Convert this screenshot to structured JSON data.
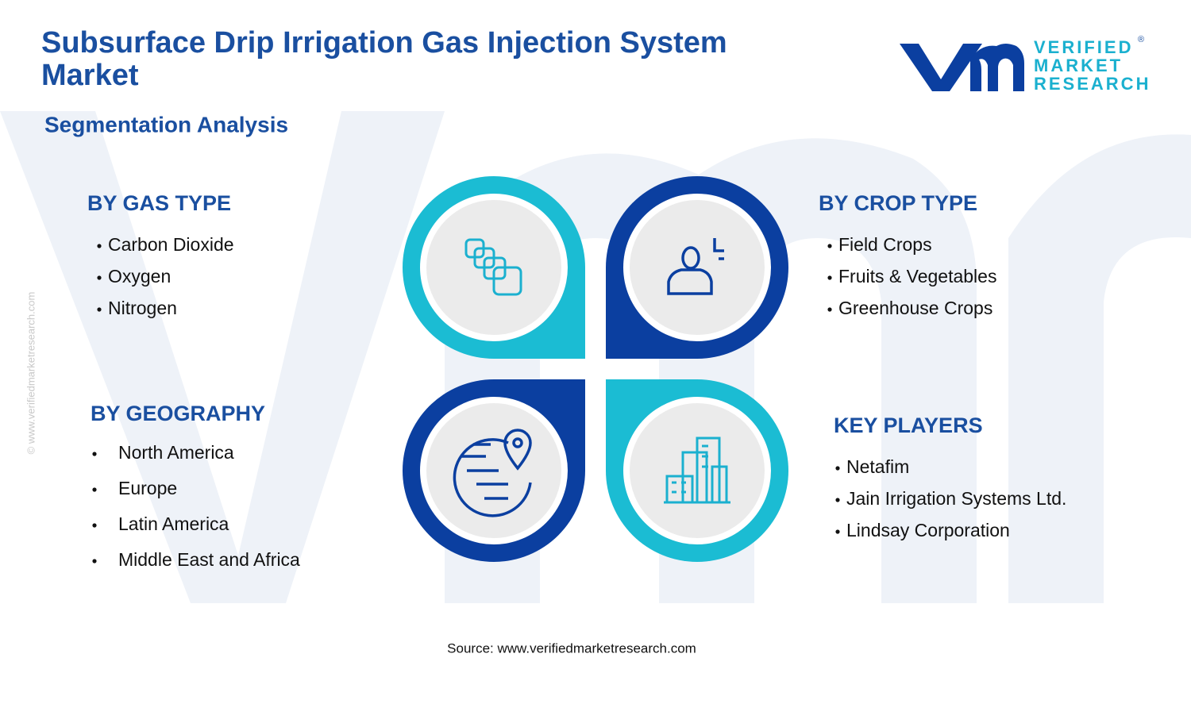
{
  "header": {
    "title_lines": [
      "Subsurface Drip Irrigation Gas Injection System",
      "Market"
    ],
    "subtitle": "Segmentation Analysis"
  },
  "logo": {
    "lines": [
      "VERIFIED",
      "MARKET",
      "RESEARCH"
    ],
    "mark": "®"
  },
  "watermark": "© www.verifiedmarketresearch.com",
  "segments": [
    {
      "title": "BY GAS TYPE",
      "items": [
        "Carbon Dioxide",
        "Oxygen",
        "Nitrogen"
      ]
    },
    {
      "title": "BY CROP TYPE",
      "items": [
        "Field Crops",
        "Fruits & Vegetables",
        "Greenhouse Crops"
      ]
    },
    {
      "title": "BY GEOGRAPHY",
      "items": [
        "North America",
        "Europe",
        "Latin America",
        "Middle East and Africa"
      ]
    },
    {
      "title": "KEY PLAYERS",
      "items": [
        "Netafim",
        "Jain Irrigation Systems Ltd.",
        "Lindsay Corporation"
      ]
    }
  ],
  "source": "Source: www.verifiedmarketresearch.com"
}
